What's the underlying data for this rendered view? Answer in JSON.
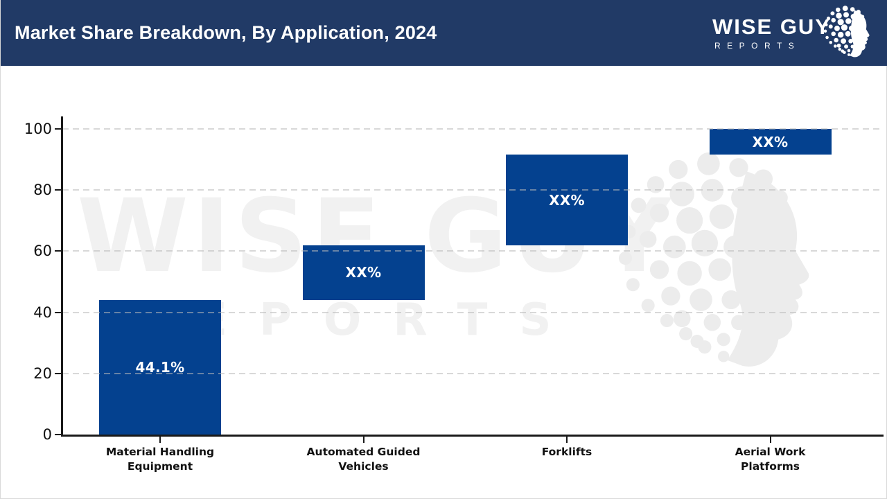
{
  "header": {
    "title": "Market Share Breakdown, By Application, 2024",
    "brand_line1": "WISE GUY",
    "brand_line2": "REPORTS"
  },
  "watermark": {
    "line1": "WISE GUY",
    "line2": "REPORTS"
  },
  "colors": {
    "header_bg": "#213a66",
    "bar": "#04418f",
    "bar_label": "#ffffff",
    "axis": "#1a1a1a",
    "gridline": "#c9c9c9",
    "tick_label": "#111111",
    "watermark": "#f1f1f1"
  },
  "chart_data": {
    "type": "bar",
    "subtype": "waterfall",
    "title": "Market Share Breakdown, By Application, 2024",
    "categories": [
      "Material Handling Equipment",
      "Automated Guided Vehicles",
      "Forklifts",
      "Aerial Work Platforms"
    ],
    "tick_labels": [
      "Material Handling\nEquipment",
      "Automated Guided\nVehicles",
      "Forklifts",
      "Aerial Work\nPlatforms"
    ],
    "segments": [
      {
        "category": "Material Handling Equipment",
        "start": 0,
        "end": 44.1,
        "value": 44.1,
        "label": "44.1%"
      },
      {
        "category": "Automated Guided Vehicles",
        "start": 44.1,
        "end": 61.9,
        "value": 17.8,
        "label": "XX%"
      },
      {
        "category": "Forklifts",
        "start": 61.9,
        "end": 91.6,
        "value": 29.7,
        "label": "XX%"
      },
      {
        "category": "Aerial Work Platforms",
        "start": 91.6,
        "end": 100,
        "value": 8.4,
        "label": "XX%"
      }
    ],
    "xlabel": "",
    "ylabel": "",
    "ylim": [
      0,
      100
    ],
    "yticks": [
      0,
      20,
      40,
      60,
      80,
      100
    ],
    "grid": true,
    "grid_style": "dashed",
    "legend": null
  }
}
